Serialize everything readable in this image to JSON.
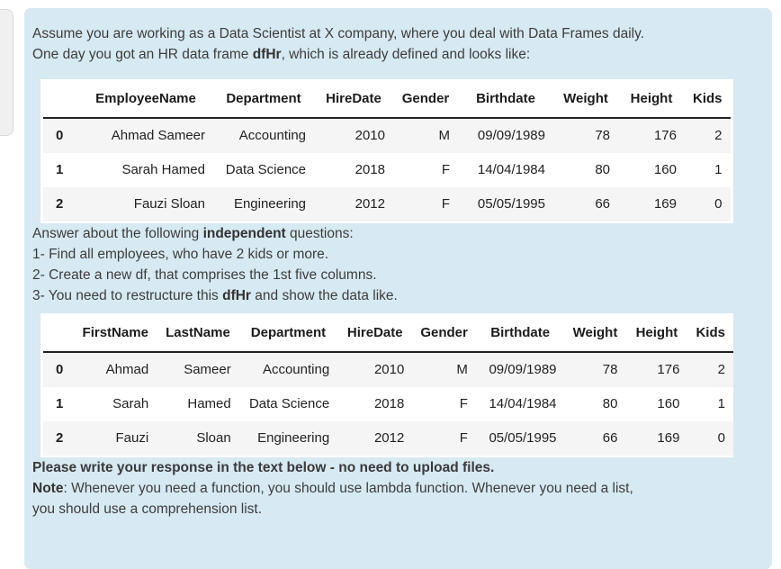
{
  "colors": {
    "panel_bg": "#d7e9f3",
    "table_stripe": "#f5f5f5",
    "table_header_rule": "#212121",
    "body_text": "#3d3d3d"
  },
  "question": {
    "intro": {
      "line1": "Assume you are working as a Data Scientist at X company, where you deal with Data Frames daily.",
      "line2_pre": "One day you got an HR data frame ",
      "line2_bold": "dfHr",
      "line2_post": ", which is already defined and looks like:"
    },
    "answer_heading": {
      "pre": "Answer about the following ",
      "bold": "independent",
      "post": " questions:"
    },
    "items": {
      "q1": "1- Find all employees, who have 2 kids or more.",
      "q2": "2- Create a new df, that comprises the 1st five columns.",
      "q3_pre": "3- You need to restructure this ",
      "q3_bold": "dfHr",
      "q3_post": " and show the data like."
    },
    "response_instruction": "Please write your response in the text below - no need to upload files.",
    "note": {
      "bold": "Note",
      "line1_rest": ": Whenever you need a function, you should use lambda function. Whenever you need a list,",
      "line2": "you should use a comprehension list."
    }
  },
  "tables": {
    "dfHr": {
      "columns": [
        "",
        "EmployeeName",
        "Department",
        "HireDate",
        "Gender",
        "Birthdate",
        "Weight",
        "Height",
        "Kids"
      ],
      "rows": [
        [
          "0",
          "Ahmad Sameer",
          "Accounting",
          "2010",
          "M",
          "09/09/1989",
          "78",
          "176",
          "2"
        ],
        [
          "1",
          "Sarah Hamed",
          "Data Science",
          "2018",
          "F",
          "14/04/1984",
          "80",
          "160",
          "1"
        ],
        [
          "2",
          "Fauzi Sloan",
          "Engineering",
          "2012",
          "F",
          "05/05/1995",
          "66",
          "169",
          "0"
        ]
      ]
    },
    "restructured": {
      "columns": [
        "",
        "FirstName",
        "LastName",
        "Department",
        "HireDate",
        "Gender",
        "Birthdate",
        "Weight",
        "Height",
        "Kids"
      ],
      "rows": [
        [
          "0",
          "Ahmad",
          "Sameer",
          "Accounting",
          "2010",
          "M",
          "09/09/1989",
          "78",
          "176",
          "2"
        ],
        [
          "1",
          "Sarah",
          "Hamed",
          "Data Science",
          "2018",
          "F",
          "14/04/1984",
          "80",
          "160",
          "1"
        ],
        [
          "2",
          "Fauzi",
          "Sloan",
          "Engineering",
          "2012",
          "F",
          "05/05/1995",
          "66",
          "169",
          "0"
        ]
      ]
    }
  }
}
